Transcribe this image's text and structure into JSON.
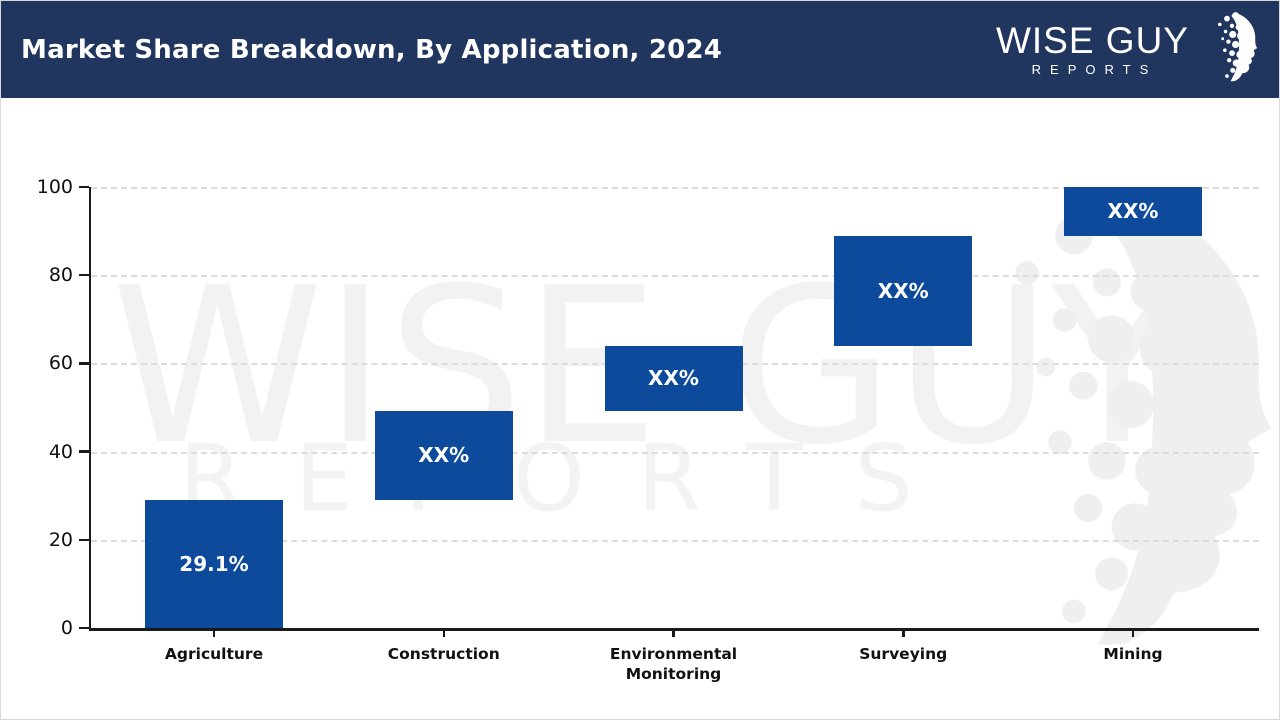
{
  "header": {
    "title": "Market Share Breakdown, By Application, 2024",
    "logo": {
      "wordmark": "WISE GUY",
      "subtext": "REPORTS"
    }
  },
  "watermark": {
    "line1": "WISE GUY",
    "line2": "REPORTS"
  },
  "chart_data": {
    "type": "bar",
    "subtype": "waterfall",
    "title": "Market Share Breakdown, By Application, 2024",
    "categories": [
      "Agriculture",
      "Construction",
      "Environmental\nMonitoring",
      "Surveying",
      "Mining"
    ],
    "segments": [
      {
        "category": "Agriculture",
        "start": 0,
        "end": 29.1,
        "label": "29.1%"
      },
      {
        "category": "Construction",
        "start": 29.1,
        "end": 49.2,
        "label": "XX%"
      },
      {
        "category": "Environmental\nMonitoring",
        "start": 49.2,
        "end": 64.0,
        "label": "XX%"
      },
      {
        "category": "Surveying",
        "start": 64.0,
        "end": 88.9,
        "label": "XX%"
      },
      {
        "category": "Mining",
        "start": 88.9,
        "end": 100.0,
        "label": "XX%"
      }
    ],
    "ylim": [
      0,
      100
    ],
    "yticks": [
      0,
      20,
      40,
      60,
      80,
      100
    ],
    "grid": "horizontal-dashed",
    "legend": false,
    "bar_color": "#0D4A9C",
    "bar_label_color": "#FFFFFF"
  },
  "colors": {
    "header_bg": "#21365F",
    "bar": "#0D4A9C",
    "grid": "#DCDCDC",
    "axis": "#1A1A1A",
    "watermark": "#F2F2F2",
    "page_border": "#D9D9D9"
  }
}
